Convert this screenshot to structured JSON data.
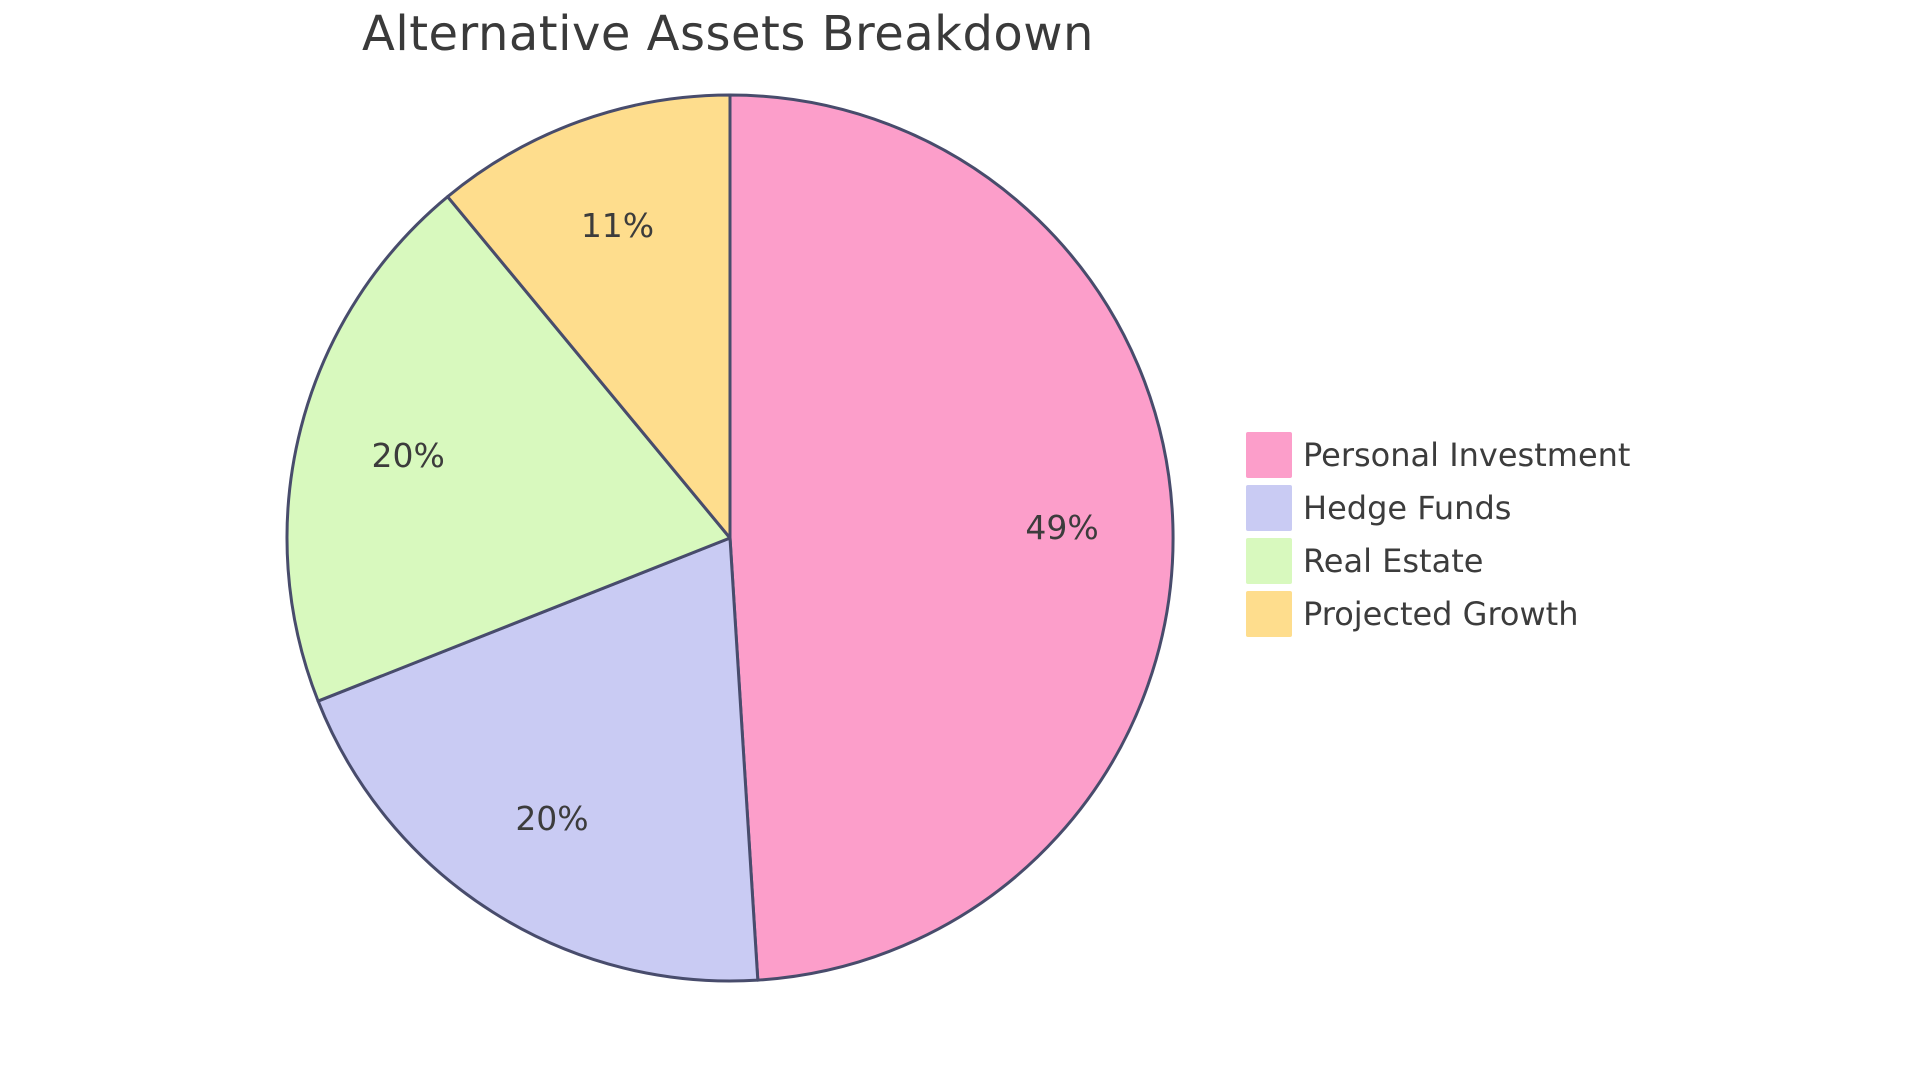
{
  "page": {
    "background_color": "#FFFFFF"
  },
  "chart_data": {
    "type": "pie",
    "title": "Alternative Assets Breakdown",
    "series": [
      {
        "label": "Personal Investment",
        "value": 49,
        "percent_label": "49%",
        "color": "#FC9ECA"
      },
      {
        "label": "Hedge Funds",
        "value": 20,
        "percent_label": "20%",
        "color": "#C9CBF3"
      },
      {
        "label": "Real Estate",
        "value": 20,
        "percent_label": "20%",
        "color": "#D8F9BE"
      },
      {
        "label": "Projected Growth",
        "value": 11,
        "percent_label": "11%",
        "color": "#FEDD8D"
      }
    ],
    "slice_border_color": "#484C6C",
    "text_color": "#3C3C3C",
    "start_angle_deg": 0,
    "direction": "clockwise",
    "legend_position": "right"
  }
}
